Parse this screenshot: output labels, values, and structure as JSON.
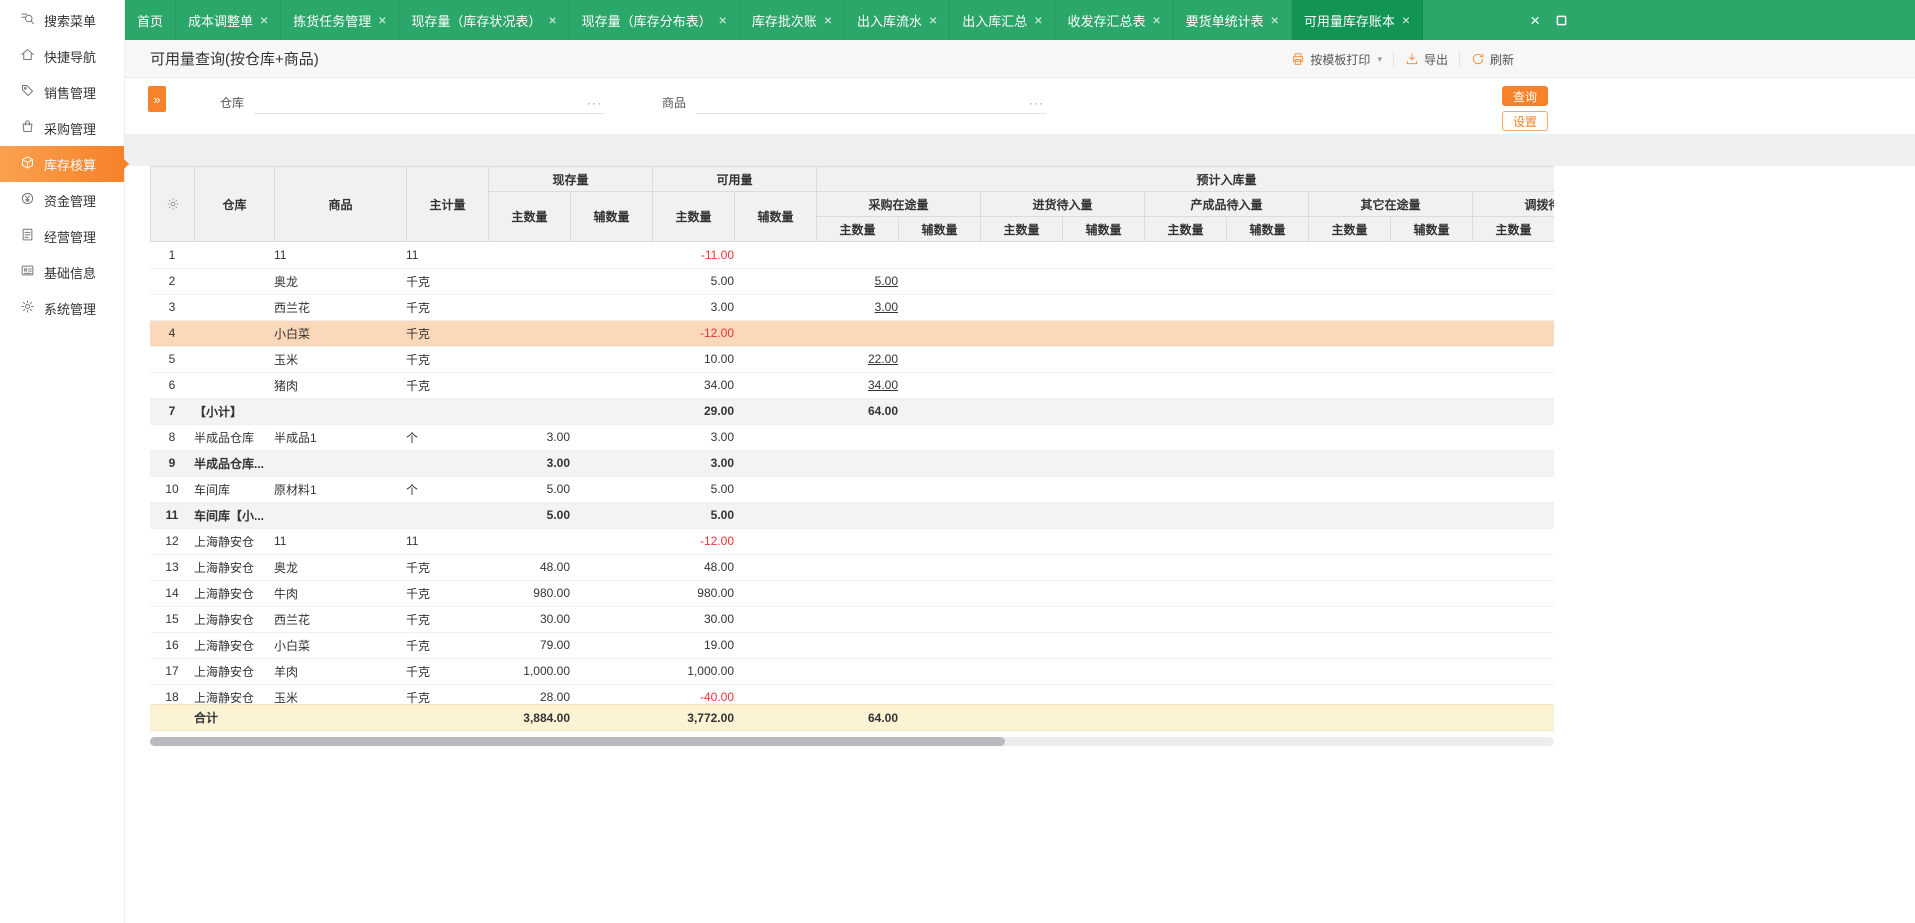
{
  "colors": {
    "green_bar": "#2ca76a",
    "green_active": "#129455",
    "orange": "#f6822a",
    "red": "#e53535",
    "selected_row": "#fcd8ba",
    "subtotal_bg": "#f3f3f3",
    "footer_bg": "#fcf3d4",
    "header_bg": "#f1f1f1"
  },
  "tabs": [
    {
      "label": "首页",
      "closable": false,
      "active": false
    },
    {
      "label": "成本调整单",
      "closable": true,
      "active": false
    },
    {
      "label": "拣货任务管理",
      "closable": true,
      "active": false
    },
    {
      "label": "现存量（库存状况表）",
      "closable": true,
      "active": false
    },
    {
      "label": "现存量（库存分布表）",
      "closable": true,
      "active": false
    },
    {
      "label": "库存批次账",
      "closable": true,
      "active": false
    },
    {
      "label": "出入库流水",
      "closable": true,
      "active": false
    },
    {
      "label": "出入库汇总",
      "closable": true,
      "active": false
    },
    {
      "label": "收发存汇总表",
      "closable": true,
      "active": false
    },
    {
      "label": "要货单统计表",
      "closable": true,
      "active": false
    },
    {
      "label": "可用量库存账本",
      "closable": true,
      "active": true
    }
  ],
  "sidebar": {
    "items": [
      {
        "label": "搜索菜单",
        "icon": "search",
        "active": false
      },
      {
        "label": "快捷导航",
        "icon": "home",
        "active": false
      },
      {
        "label": "销售管理",
        "icon": "sales",
        "active": false
      },
      {
        "label": "采购管理",
        "icon": "purchase",
        "active": false
      },
      {
        "label": "库存核算",
        "icon": "inventory",
        "active": true
      },
      {
        "label": "资金管理",
        "icon": "funds",
        "active": false
      },
      {
        "label": "经营管理",
        "icon": "business",
        "active": false
      },
      {
        "label": "基础信息",
        "icon": "info",
        "active": false
      },
      {
        "label": "系统管理",
        "icon": "system",
        "active": false
      }
    ]
  },
  "page": {
    "title": "可用量查询(按仓库+商品)"
  },
  "toolbar": {
    "print_label": "按模板打印",
    "export_label": "导出",
    "refresh_label": "刷新"
  },
  "filters": {
    "warehouse_label": "仓库",
    "warehouse_value": "",
    "product_label": "商品",
    "product_value": "",
    "ellipsis": "···",
    "query_button": "查询",
    "settings_button": "设置"
  },
  "table": {
    "headers": {
      "warehouse": "仓库",
      "product": "商品",
      "unit": "主计量",
      "onhand": "现存量",
      "available": "可用量",
      "expected": "预计入库量",
      "po": "采购在途量",
      "incoming": "进货待入量",
      "finished": "产成品待入量",
      "other": "其它在途量",
      "transfer": "调拨待入量",
      "main_qty": "主数量",
      "aux_qty": "辅数量"
    },
    "rows": [
      {
        "no": "1",
        "wh": "",
        "prod": "11",
        "unit": "11",
        "cols": {
          "2": "-11.00"
        },
        "neg": [
          2
        ]
      },
      {
        "no": "2",
        "wh": "",
        "prod": "奥龙",
        "unit": "千克",
        "cols": {
          "2": "5.00",
          "4": "5.00"
        },
        "link": [
          4
        ]
      },
      {
        "no": "3",
        "wh": "",
        "prod": "西兰花",
        "unit": "千克",
        "cols": {
          "2": "3.00",
          "4": "3.00"
        },
        "link": [
          4
        ]
      },
      {
        "no": "4",
        "wh": "",
        "prod": "小白菜",
        "unit": "千克",
        "cols": {
          "2": "-12.00"
        },
        "neg": [
          2
        ],
        "selected": true
      },
      {
        "no": "5",
        "wh": "",
        "prod": "玉米",
        "unit": "千克",
        "cols": {
          "2": "10.00",
          "4": "22.00"
        },
        "link": [
          4
        ]
      },
      {
        "no": "6",
        "wh": "",
        "prod": "猪肉",
        "unit": "千克",
        "cols": {
          "2": "34.00",
          "4": "34.00"
        },
        "link": [
          4
        ]
      },
      {
        "no": "7",
        "wh": "【小计】",
        "prod": "",
        "unit": "",
        "cols": {
          "2": "29.00",
          "4": "64.00"
        },
        "subtotal": true
      },
      {
        "no": "8",
        "wh": "半成品仓库",
        "prod": "半成品1",
        "unit": "个",
        "cols": {
          "0": "3.00",
          "2": "3.00"
        }
      },
      {
        "no": "9",
        "wh": "半成品仓库...",
        "prod": "",
        "unit": "",
        "cols": {
          "0": "3.00",
          "2": "3.00"
        },
        "subtotal": true
      },
      {
        "no": "10",
        "wh": "车间库",
        "prod": "原材料1",
        "unit": "个",
        "cols": {
          "0": "5.00",
          "2": "5.00"
        }
      },
      {
        "no": "11",
        "wh": "车间库【小...",
        "prod": "",
        "unit": "",
        "cols": {
          "0": "5.00",
          "2": "5.00"
        },
        "subtotal": true
      },
      {
        "no": "12",
        "wh": "上海静安仓",
        "prod": "11",
        "unit": "11",
        "cols": {
          "2": "-12.00"
        },
        "neg": [
          2
        ]
      },
      {
        "no": "13",
        "wh": "上海静安仓",
        "prod": "奥龙",
        "unit": "千克",
        "cols": {
          "0": "48.00",
          "2": "48.00"
        }
      },
      {
        "no": "14",
        "wh": "上海静安仓",
        "prod": "牛肉",
        "unit": "千克",
        "cols": {
          "0": "980.00",
          "2": "980.00"
        }
      },
      {
        "no": "15",
        "wh": "上海静安仓",
        "prod": "西兰花",
        "unit": "千克",
        "cols": {
          "0": "30.00",
          "2": "30.00"
        }
      },
      {
        "no": "16",
        "wh": "上海静安仓",
        "prod": "小白菜",
        "unit": "千克",
        "cols": {
          "0": "79.00",
          "2": "19.00"
        }
      },
      {
        "no": "17",
        "wh": "上海静安仓",
        "prod": "羊肉",
        "unit": "千克",
        "cols": {
          "0": "1,000.00",
          "2": "1,000.00"
        }
      },
      {
        "no": "18",
        "wh": "上海静安仓",
        "prod": "玉米",
        "unit": "千克",
        "cols": {
          "0": "28.00",
          "2": "-40.00"
        },
        "neg": [
          2
        ]
      }
    ],
    "footer": {
      "label": "合计",
      "cols": {
        "0": "3,884.00",
        "2": "3,772.00",
        "4": "64.00"
      }
    }
  }
}
